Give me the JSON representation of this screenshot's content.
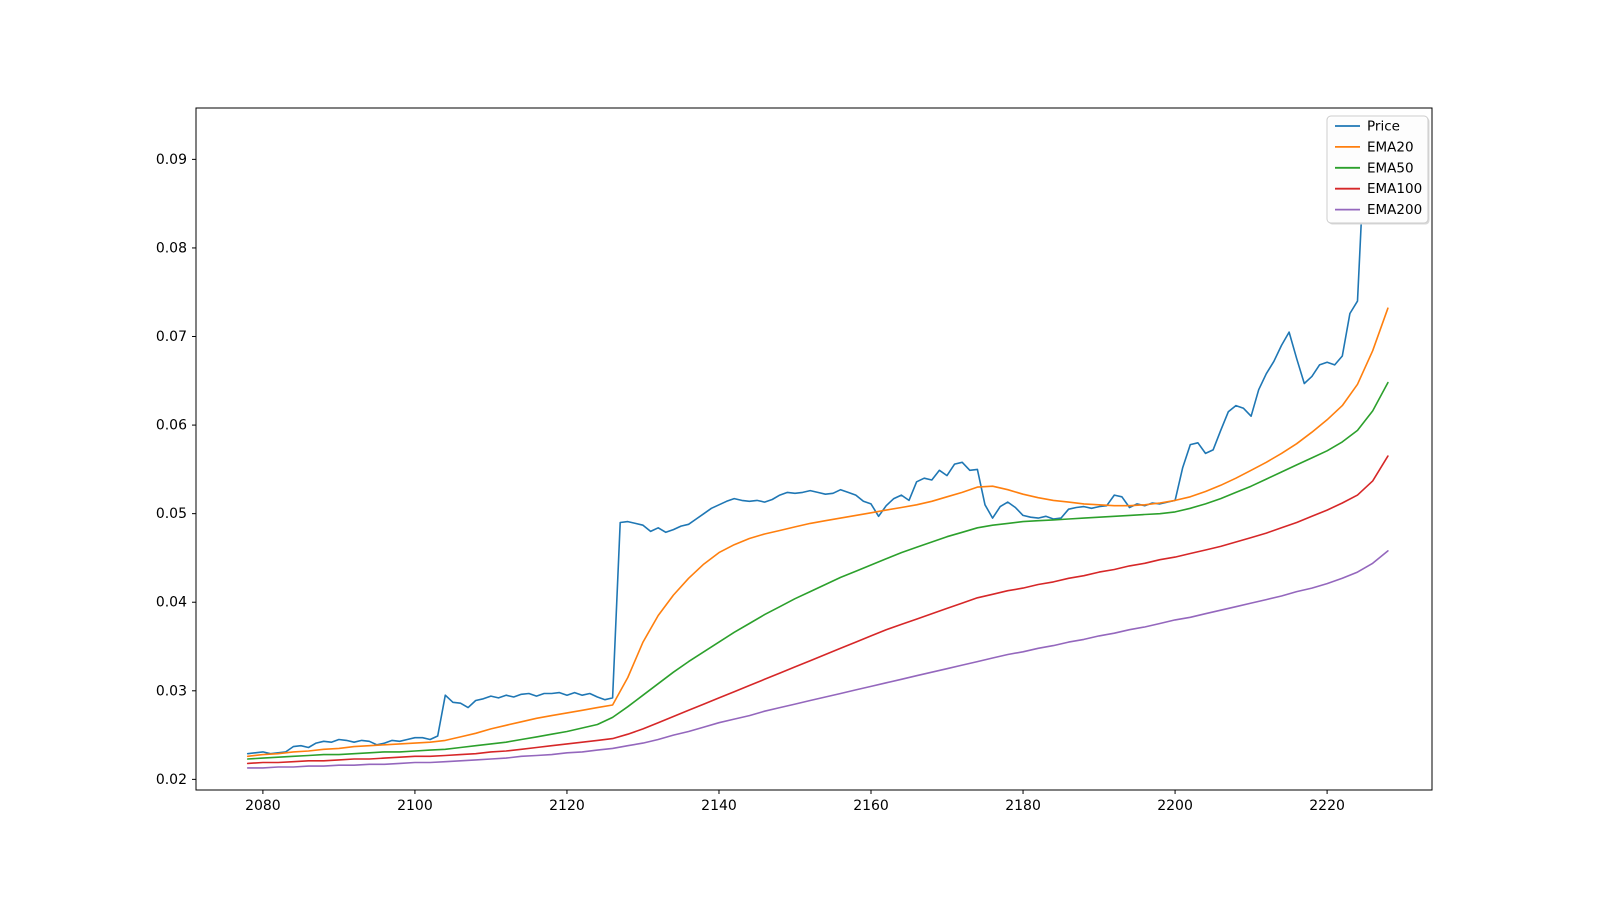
{
  "figure": {
    "background": "#ffffff",
    "axis_color": "#000000",
    "legend_bg": "#ffffff",
    "legend_border": "#cccccc"
  },
  "chart_data": {
    "type": "line",
    "title": "",
    "xlabel": "",
    "ylabel": "",
    "grid": false,
    "xlim": [
      2071.2,
      2233.8
    ],
    "ylim": [
      0.0188,
      0.0958
    ],
    "x_ticks": [
      2080,
      2100,
      2120,
      2140,
      2160,
      2180,
      2200,
      2220
    ],
    "x_tick_labels": [
      "2080",
      "2100",
      "2120",
      "2140",
      "2160",
      "2180",
      "2200",
      "2220"
    ],
    "y_ticks": [
      0.02,
      0.03,
      0.04,
      0.05,
      0.06,
      0.07,
      0.08,
      0.09
    ],
    "y_tick_labels": [
      "0.02",
      "0.03",
      "0.04",
      "0.05",
      "0.06",
      "0.07",
      "0.08",
      "0.09"
    ],
    "legend": {
      "position": "upper right",
      "entries": [
        "Price",
        "EMA20",
        "EMA50",
        "EMA100",
        "EMA200"
      ]
    },
    "series": [
      {
        "name": "Price",
        "color": "#1f77b4",
        "x_start": 2078,
        "x_step": 1,
        "values": [
          0.0229,
          0.023,
          0.0231,
          0.0229,
          0.023,
          0.0231,
          0.0237,
          0.0238,
          0.0236,
          0.0241,
          0.0243,
          0.0242,
          0.0245,
          0.0244,
          0.0242,
          0.0244,
          0.0243,
          0.0239,
          0.0241,
          0.0244,
          0.0243,
          0.0245,
          0.0247,
          0.0247,
          0.0245,
          0.0249,
          0.0295,
          0.0287,
          0.0286,
          0.0281,
          0.0289,
          0.0291,
          0.0294,
          0.0292,
          0.0295,
          0.0293,
          0.0296,
          0.0297,
          0.0294,
          0.0297,
          0.0297,
          0.0298,
          0.0295,
          0.0298,
          0.0295,
          0.0297,
          0.0293,
          0.029,
          0.0292,
          0.049,
          0.0491,
          0.0489,
          0.0487,
          0.048,
          0.0484,
          0.0479,
          0.0482,
          0.0486,
          0.0488,
          0.0494,
          0.05,
          0.0506,
          0.051,
          0.0514,
          0.0517,
          0.0515,
          0.0514,
          0.0515,
          0.0513,
          0.0516,
          0.0521,
          0.0524,
          0.0523,
          0.0524,
          0.0526,
          0.0524,
          0.0522,
          0.0523,
          0.0527,
          0.0524,
          0.0521,
          0.0514,
          0.0511,
          0.0497,
          0.0509,
          0.0517,
          0.0521,
          0.0515,
          0.0536,
          0.054,
          0.0538,
          0.0549,
          0.0543,
          0.0556,
          0.0558,
          0.0549,
          0.055,
          0.051,
          0.0495,
          0.0508,
          0.0513,
          0.0507,
          0.0498,
          0.0496,
          0.0495,
          0.0497,
          0.0494,
          0.0495,
          0.0505,
          0.0507,
          0.0508,
          0.0506,
          0.0508,
          0.0509,
          0.0521,
          0.0519,
          0.0507,
          0.0511,
          0.0509,
          0.0512,
          0.0511,
          0.0513,
          0.0515,
          0.0552,
          0.0578,
          0.058,
          0.0568,
          0.0572,
          0.0594,
          0.0615,
          0.0622,
          0.0619,
          0.061,
          0.064,
          0.0658,
          0.0672,
          0.069,
          0.0705,
          0.0675,
          0.0647,
          0.0655,
          0.0668,
          0.0671,
          0.0668,
          0.0678,
          0.0726,
          0.074,
          0.092
        ]
      },
      {
        "name": "EMA20",
        "color": "#ff7f0e",
        "x_start": 2078,
        "x_step": 2,
        "values": [
          0.0226,
          0.0228,
          0.0229,
          0.0231,
          0.0232,
          0.0234,
          0.0235,
          0.0237,
          0.0238,
          0.0239,
          0.024,
          0.0241,
          0.0242,
          0.0244,
          0.0248,
          0.0252,
          0.0257,
          0.0261,
          0.0265,
          0.0269,
          0.0272,
          0.0275,
          0.0278,
          0.0281,
          0.0284,
          0.0315,
          0.0355,
          0.0385,
          0.0408,
          0.0427,
          0.0443,
          0.0456,
          0.0465,
          0.0472,
          0.0477,
          0.0481,
          0.0485,
          0.0489,
          0.0492,
          0.0495,
          0.0498,
          0.0501,
          0.0504,
          0.0507,
          0.051,
          0.0514,
          0.0519,
          0.0524,
          0.053,
          0.0531,
          0.0527,
          0.0522,
          0.0518,
          0.0515,
          0.0513,
          0.0511,
          0.051,
          0.0509,
          0.0509,
          0.051,
          0.0512,
          0.0515,
          0.0519,
          0.0525,
          0.0532,
          0.054,
          0.0549,
          0.0558,
          0.0568,
          0.0579,
          0.0592,
          0.0606,
          0.0622,
          0.0646,
          0.0684,
          0.0732
        ]
      },
      {
        "name": "EMA50",
        "color": "#2ca02c",
        "x_start": 2078,
        "x_step": 2,
        "values": [
          0.0223,
          0.0224,
          0.0225,
          0.0226,
          0.0227,
          0.0228,
          0.0228,
          0.0229,
          0.023,
          0.0231,
          0.0231,
          0.0232,
          0.0233,
          0.0234,
          0.0236,
          0.0238,
          0.024,
          0.0242,
          0.0245,
          0.0248,
          0.0251,
          0.0254,
          0.0258,
          0.0262,
          0.027,
          0.0282,
          0.0295,
          0.0308,
          0.0321,
          0.0333,
          0.0344,
          0.0355,
          0.0366,
          0.0376,
          0.0386,
          0.0395,
          0.0404,
          0.0412,
          0.042,
          0.0428,
          0.0435,
          0.0442,
          0.0449,
          0.0456,
          0.0462,
          0.0468,
          0.0474,
          0.0479,
          0.0484,
          0.0487,
          0.0489,
          0.0491,
          0.0492,
          0.0493,
          0.0494,
          0.0495,
          0.0496,
          0.0497,
          0.0498,
          0.0499,
          0.05,
          0.0502,
          0.0506,
          0.0511,
          0.0517,
          0.0524,
          0.0531,
          0.0539,
          0.0547,
          0.0555,
          0.0563,
          0.0571,
          0.0581,
          0.0594,
          0.0616,
          0.0648
        ]
      },
      {
        "name": "EMA100",
        "color": "#d62728",
        "x_start": 2078,
        "x_step": 2,
        "values": [
          0.0218,
          0.0219,
          0.0219,
          0.022,
          0.0221,
          0.0221,
          0.0222,
          0.0223,
          0.0223,
          0.0224,
          0.0225,
          0.0226,
          0.0226,
          0.0227,
          0.0228,
          0.0229,
          0.0231,
          0.0232,
          0.0234,
          0.0236,
          0.0238,
          0.024,
          0.0242,
          0.0244,
          0.0246,
          0.0251,
          0.0257,
          0.0264,
          0.0271,
          0.0278,
          0.0285,
          0.0292,
          0.0299,
          0.0306,
          0.0313,
          0.032,
          0.0327,
          0.0334,
          0.0341,
          0.0348,
          0.0355,
          0.0362,
          0.0369,
          0.0375,
          0.0381,
          0.0387,
          0.0393,
          0.0399,
          0.0405,
          0.0409,
          0.0413,
          0.0416,
          0.042,
          0.0423,
          0.0427,
          0.043,
          0.0434,
          0.0437,
          0.0441,
          0.0444,
          0.0448,
          0.0451,
          0.0455,
          0.0459,
          0.0463,
          0.0468,
          0.0473,
          0.0478,
          0.0484,
          0.049,
          0.0497,
          0.0504,
          0.0512,
          0.0521,
          0.0537,
          0.0565
        ]
      },
      {
        "name": "EMA200",
        "color": "#9467bd",
        "x_start": 2078,
        "x_step": 2,
        "values": [
          0.0213,
          0.0213,
          0.0214,
          0.0214,
          0.0215,
          0.0215,
          0.0216,
          0.0216,
          0.0217,
          0.0217,
          0.0218,
          0.0219,
          0.0219,
          0.022,
          0.0221,
          0.0222,
          0.0223,
          0.0224,
          0.0226,
          0.0227,
          0.0228,
          0.023,
          0.0231,
          0.0233,
          0.0235,
          0.0238,
          0.0241,
          0.0245,
          0.025,
          0.0254,
          0.0259,
          0.0264,
          0.0268,
          0.0272,
          0.0277,
          0.0281,
          0.0285,
          0.0289,
          0.0293,
          0.0297,
          0.0301,
          0.0305,
          0.0309,
          0.0313,
          0.0317,
          0.0321,
          0.0325,
          0.0329,
          0.0333,
          0.0337,
          0.0341,
          0.0344,
          0.0348,
          0.0351,
          0.0355,
          0.0358,
          0.0362,
          0.0365,
          0.0369,
          0.0372,
          0.0376,
          0.038,
          0.0383,
          0.0387,
          0.0391,
          0.0395,
          0.0399,
          0.0403,
          0.0407,
          0.0412,
          0.0416,
          0.0421,
          0.0427,
          0.0434,
          0.0444,
          0.0458
        ]
      }
    ]
  }
}
